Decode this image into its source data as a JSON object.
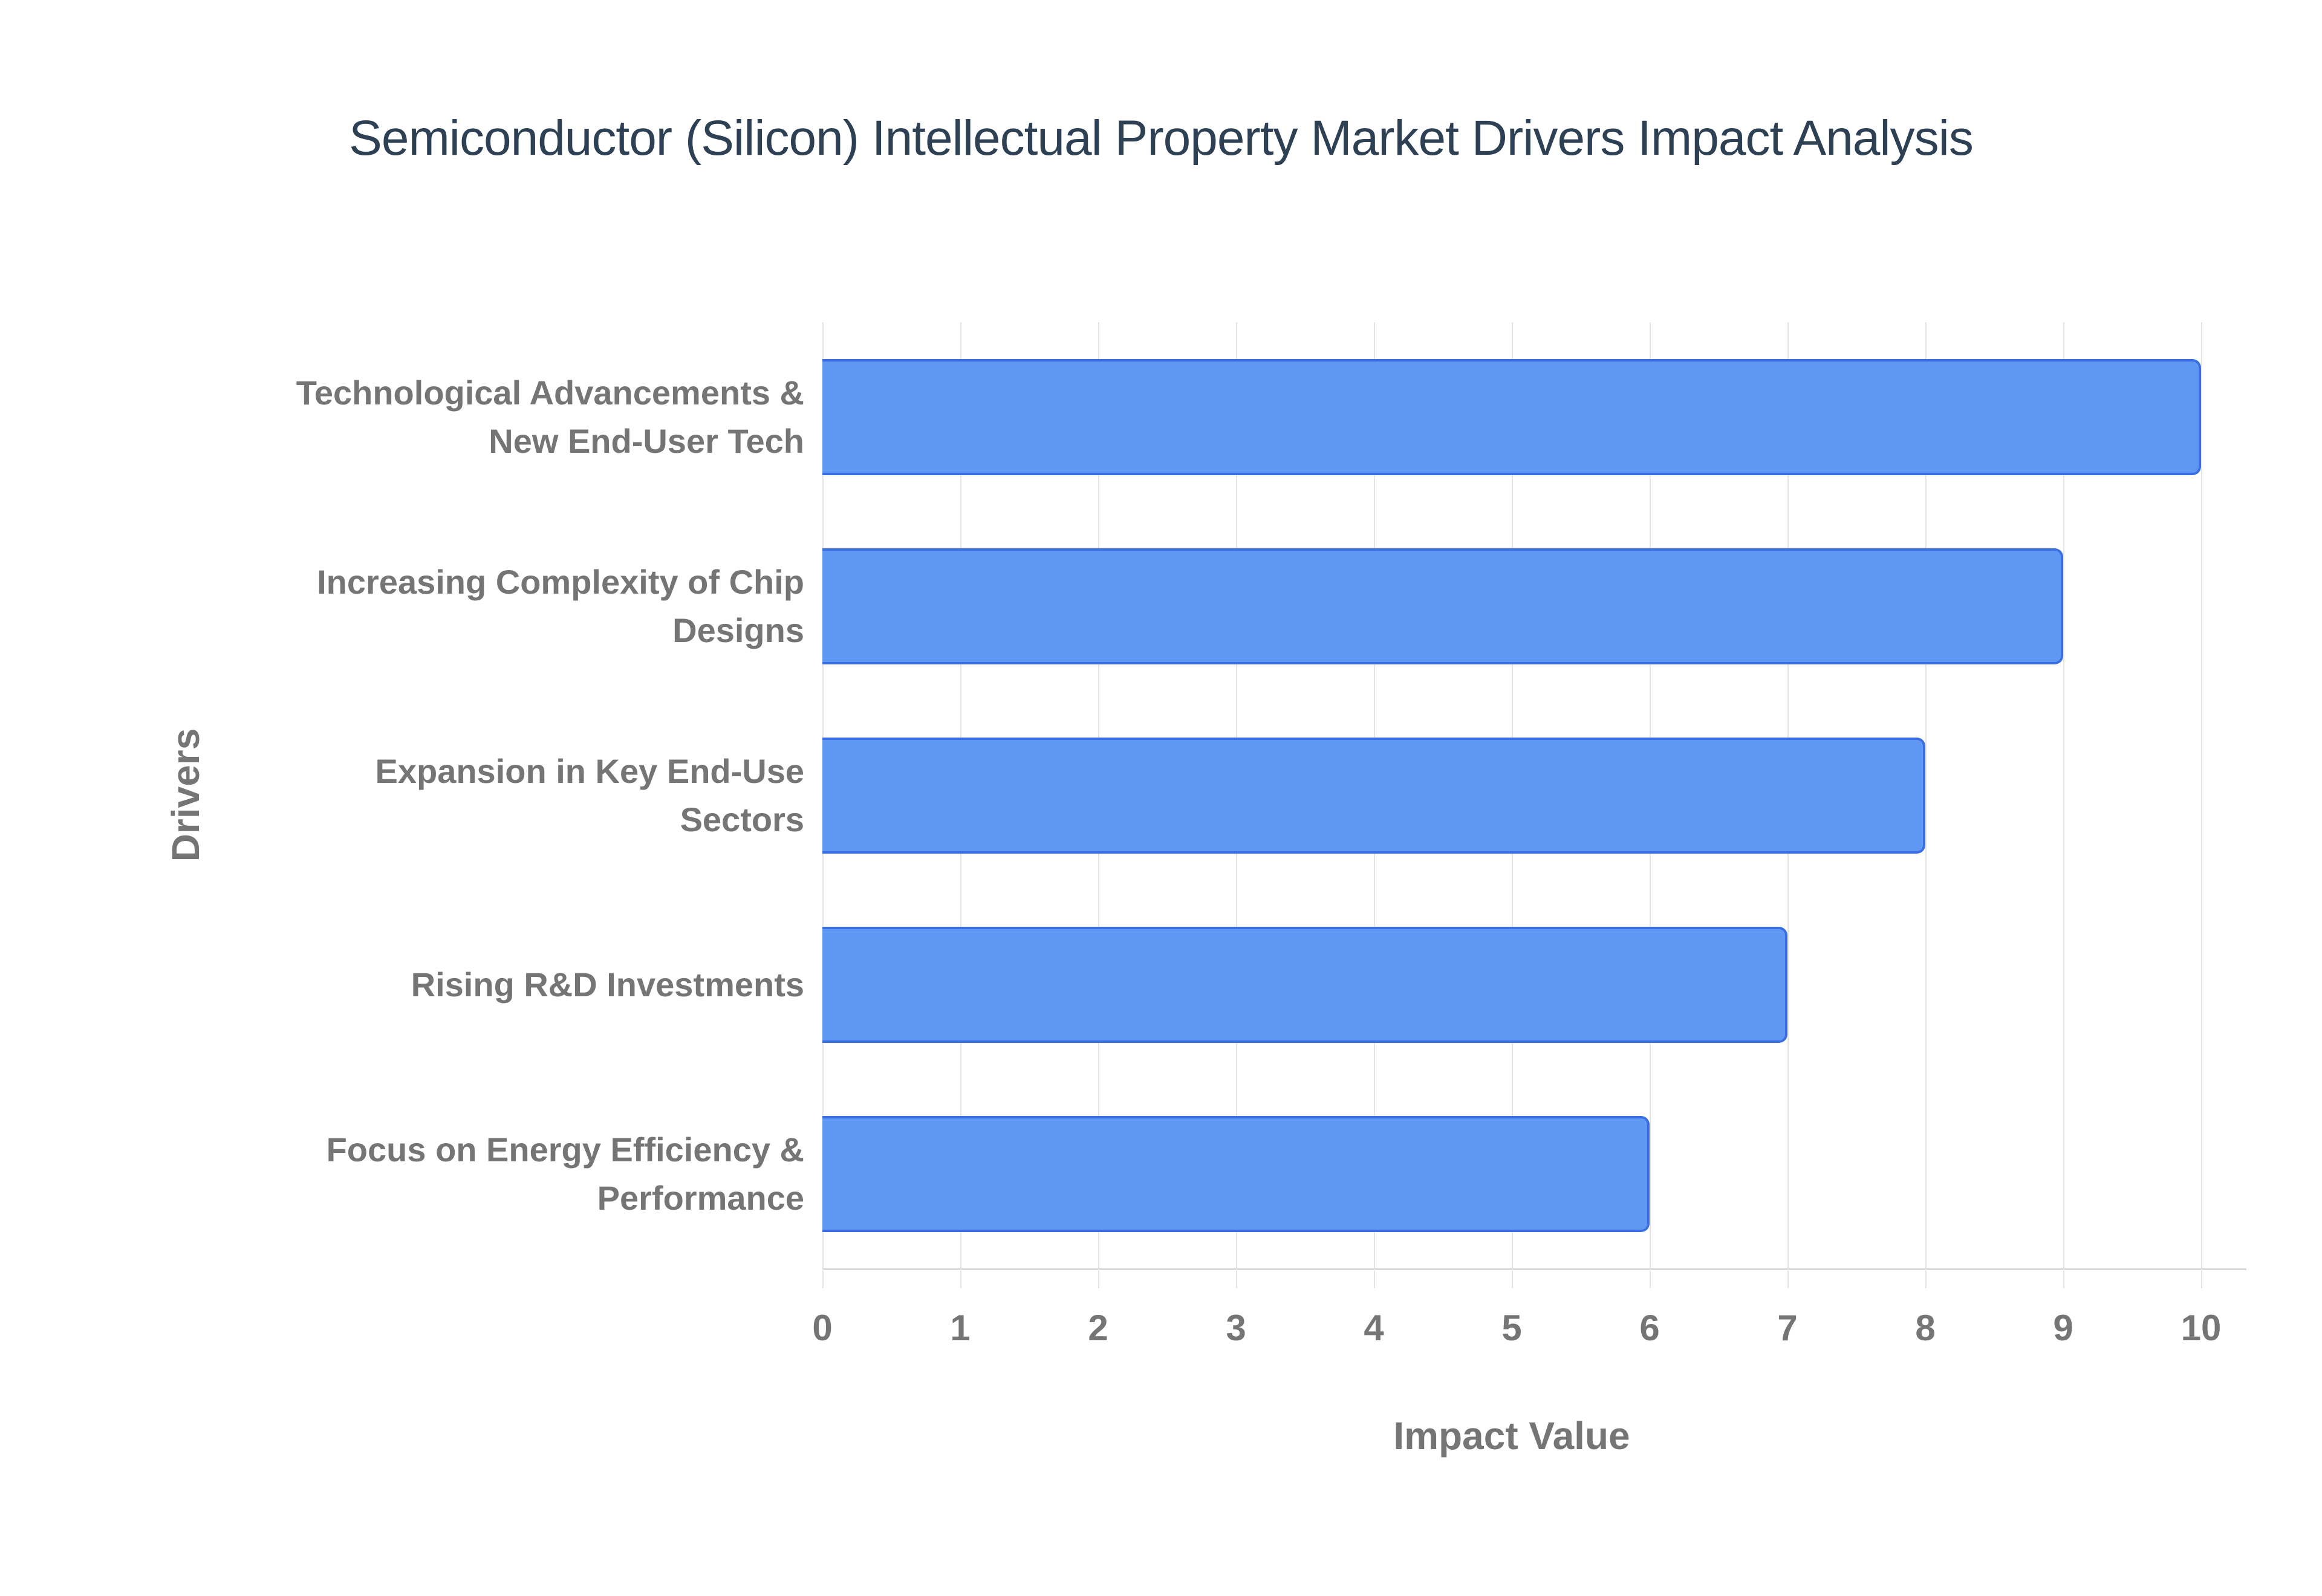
{
  "title": "Semiconductor (Silicon) Intellectual Property Market Drivers Impact Analysis",
  "chart_data": {
    "type": "bar",
    "orientation": "horizontal",
    "title": "Semiconductor (Silicon) Intellectual Property Market Drivers Impact Analysis",
    "xlabel": "Impact Value",
    "ylabel": "Drivers",
    "xlim": [
      0,
      10
    ],
    "xticks": [
      0,
      1,
      2,
      3,
      4,
      5,
      6,
      7,
      8,
      9,
      10
    ],
    "grid": true,
    "legend": "none",
    "categories": [
      "Technological Advancements & New End-User Tech",
      "Increasing Complexity of Chip Designs",
      "Expansion in Key End-Use Sectors",
      "Rising R&D Investments",
      "Focus on Energy Efficiency & Performance"
    ],
    "category_lines": [
      [
        "Technological Advancements &",
        "New End-User Tech"
      ],
      [
        "Increasing Complexity of Chip",
        "Designs"
      ],
      [
        "Expansion in Key End-Use",
        "Sectors"
      ],
      [
        "Rising R&D Investments"
      ],
      [
        "Focus on Energy Efficiency &",
        "Performance"
      ]
    ],
    "values": [
      10,
      9,
      8,
      7,
      6
    ]
  },
  "colors": {
    "title_text": "#2e4053",
    "label_text": "#757575",
    "bar_fill": "#5f97f3",
    "bar_border": "#3a6fe3",
    "gridline": "#e4e4e4",
    "axis_line": "#d8d8d8",
    "background": "#ffffff"
  }
}
